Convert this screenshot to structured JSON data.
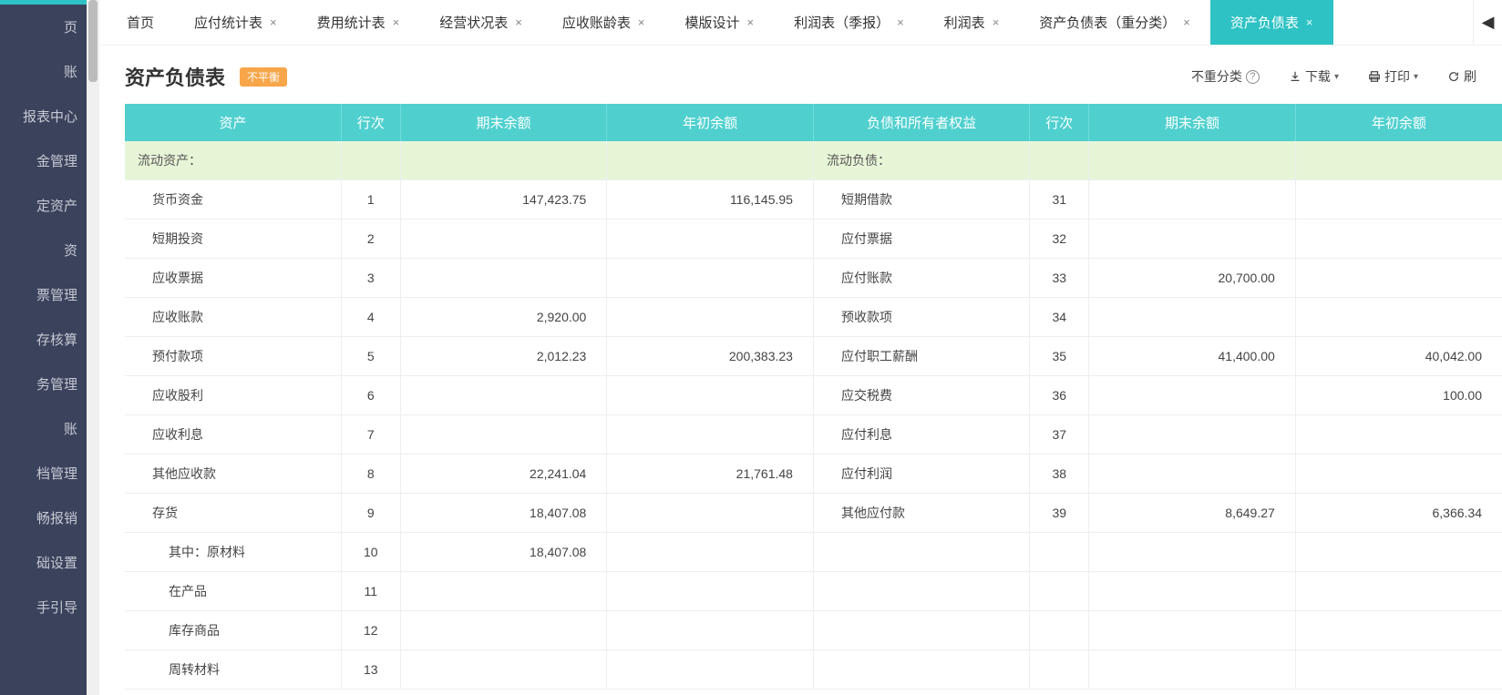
{
  "colors": {
    "accent": "#2ec2c4",
    "header_bg": "#4fd0cf",
    "sidebar_bg": "#3b425b",
    "section_bg": "#e7f5d7",
    "badge_bg": "#f7a64a"
  },
  "sidebar": {
    "items": [
      "页",
      "账",
      "报表中心",
      "金管理",
      "定资产",
      "资",
      "票管理",
      "存核算",
      "务管理",
      "账",
      "档管理",
      "畅报销",
      "础设置",
      "手引导"
    ]
  },
  "tabs": {
    "items": [
      {
        "label": "首页",
        "closable": false
      },
      {
        "label": "应付统计表",
        "closable": true
      },
      {
        "label": "费用统计表",
        "closable": true
      },
      {
        "label": "经营状况表",
        "closable": true
      },
      {
        "label": "应收账龄表",
        "closable": true
      },
      {
        "label": "模版设计",
        "closable": true
      },
      {
        "label": "利润表（季报）",
        "closable": true
      },
      {
        "label": "利润表",
        "closable": true
      },
      {
        "label": "资产负债表（重分类）",
        "closable": true
      },
      {
        "label": "资产负债表",
        "closable": true,
        "active": true
      }
    ],
    "arrow_glyph": "◀"
  },
  "header": {
    "title": "资产负债表",
    "badge": "不平衡",
    "actions": {
      "noreclass": "不重分类",
      "download": "下载",
      "print": "打印",
      "refresh": "刷"
    }
  },
  "table": {
    "columns": [
      "资产",
      "行次",
      "期末余额",
      "年初余额",
      "负债和所有者权益",
      "行次",
      "期末余额",
      "年初余额"
    ],
    "section_asset": "流动资产：",
    "section_liab": "流动负债：",
    "rows": [
      {
        "a": "货币资金",
        "an": "1",
        "ae": "147,423.75",
        "ab": "116,145.95",
        "l": "短期借款",
        "ln": "31",
        "le": "",
        "lb": ""
      },
      {
        "a": "短期投资",
        "an": "2",
        "ae": "",
        "ab": "",
        "l": "应付票据",
        "ln": "32",
        "le": "",
        "lb": ""
      },
      {
        "a": "应收票据",
        "an": "3",
        "ae": "",
        "ab": "",
        "l": "应付账款",
        "ln": "33",
        "le": "20,700.00",
        "lb": ""
      },
      {
        "a": "应收账款",
        "an": "4",
        "ae": "2,920.00",
        "ab": "",
        "l": "预收款项",
        "ln": "34",
        "le": "",
        "lb": ""
      },
      {
        "a": "预付款项",
        "an": "5",
        "ae": "2,012.23",
        "ab": "200,383.23",
        "l": "应付职工薪酬",
        "ln": "35",
        "le": "41,400.00",
        "lb": "40,042.00"
      },
      {
        "a": "应收股利",
        "an": "6",
        "ae": "",
        "ab": "",
        "l": "应交税费",
        "ln": "36",
        "le": "",
        "lb": "100.00"
      },
      {
        "a": "应收利息",
        "an": "7",
        "ae": "",
        "ab": "",
        "l": "应付利息",
        "ln": "37",
        "le": "",
        "lb": ""
      },
      {
        "a": "其他应收款",
        "an": "8",
        "ae": "22,241.04",
        "ab": "21,761.48",
        "l": "应付利润",
        "ln": "38",
        "le": "",
        "lb": ""
      },
      {
        "a": "存货",
        "an": "9",
        "ae": "18,407.08",
        "ab": "",
        "l": "其他应付款",
        "ln": "39",
        "le": "8,649.27",
        "lb": "6,366.34"
      },
      {
        "a": "其中：原材料",
        "an": "10",
        "ae": "18,407.08",
        "ab": "",
        "l": "",
        "ln": "",
        "le": "",
        "lb": "",
        "indent": 2
      },
      {
        "a": "在产品",
        "an": "11",
        "ae": "",
        "ab": "",
        "l": "",
        "ln": "",
        "le": "",
        "lb": "",
        "indent": 2
      },
      {
        "a": "库存商品",
        "an": "12",
        "ae": "",
        "ab": "",
        "l": "",
        "ln": "",
        "le": "",
        "lb": "",
        "indent": 2
      },
      {
        "a": "周转材料",
        "an": "13",
        "ae": "",
        "ab": "",
        "l": "",
        "ln": "",
        "le": "",
        "lb": "",
        "indent": 2
      }
    ]
  }
}
